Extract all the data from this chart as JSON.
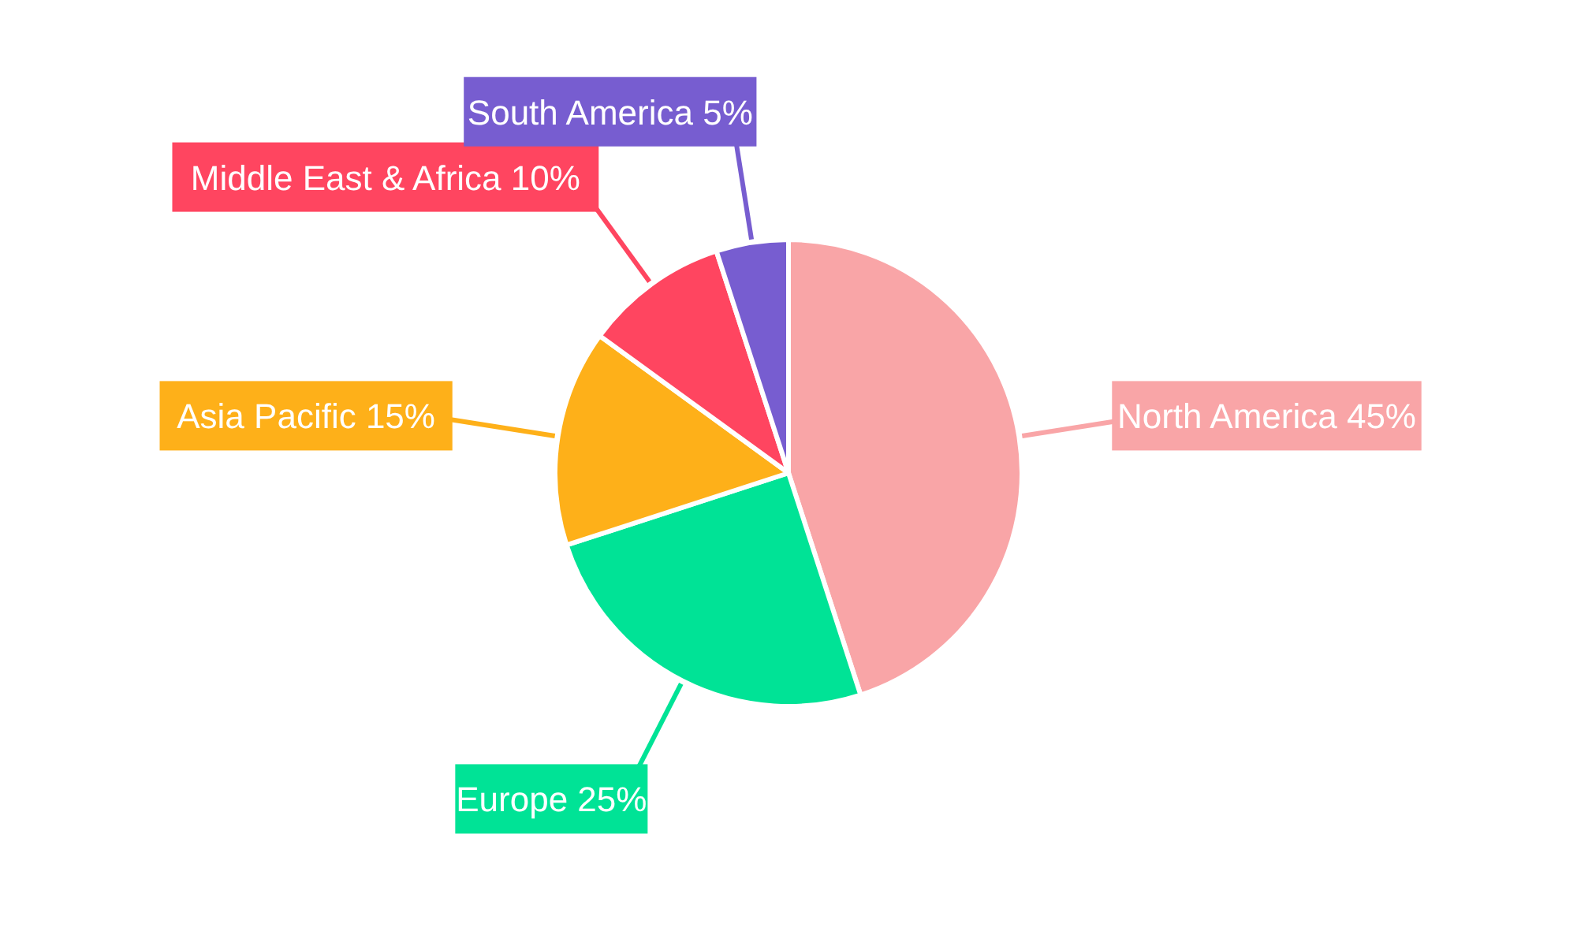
{
  "chart_data": {
    "type": "pie",
    "categories": [
      "North America",
      "Europe",
      "Asia Pacific",
      "Middle East & Africa",
      "South America"
    ],
    "values": [
      45,
      25,
      15,
      10,
      5
    ],
    "value_labels": [
      "45%",
      "25%",
      "15%",
      "10%",
      "5%"
    ],
    "colors": [
      "#f9a5a7",
      "#00e396",
      "#feb019",
      "#ff4560",
      "#775dd0"
    ]
  }
}
